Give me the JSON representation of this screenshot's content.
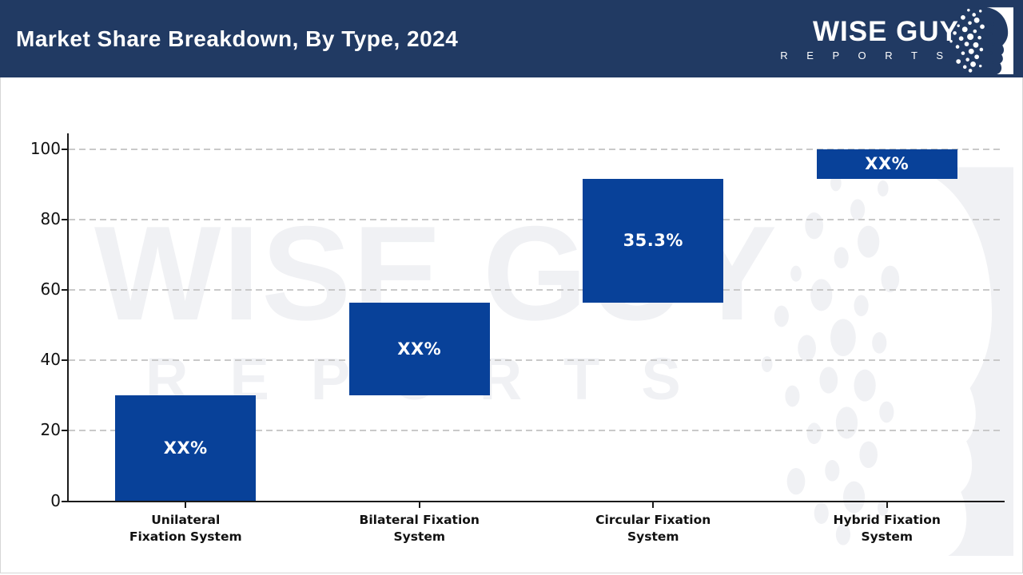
{
  "header": {
    "title": "Market Share Breakdown, By Type, 2024",
    "logo": {
      "wordmark": "WISE GUY",
      "subtext": "R E P O R T S"
    }
  },
  "watermark": {
    "line1": "WISE GUY",
    "line2": "REPORTS"
  },
  "colors": {
    "header_bg": "#213a63",
    "bar_blue": "#084199",
    "bar_label": "#ffffff",
    "gridline": "#c9c9c9",
    "axis": "#1a1a1a",
    "watermark": "#f0f1f4",
    "title_text": "#ffffff"
  },
  "chart_data": {
    "type": "bar",
    "subtype": "waterfall",
    "title": "Market Share Breakdown, By Type, 2024",
    "categories": [
      "Unilateral Fixation System",
      "Bilateral Fixation System",
      "Circular Fixation System",
      "Hybrid Fixation System"
    ],
    "category_lines": [
      [
        "Unilateral",
        "Fixation System"
      ],
      [
        "Bilateral Fixation",
        "System"
      ],
      [
        "Circular Fixation",
        "System"
      ],
      [
        "Hybrid Fixation",
        "System"
      ]
    ],
    "bars": [
      {
        "start": 0,
        "end": 30,
        "label": "XX%"
      },
      {
        "start": 30,
        "end": 56.3,
        "label": "XX%"
      },
      {
        "start": 56.3,
        "end": 91.6,
        "label": "35.3%"
      },
      {
        "start": 91.6,
        "end": 100,
        "label": "XX%"
      }
    ],
    "ylim": [
      0,
      100
    ],
    "yticks": [
      0,
      20,
      40,
      60,
      80,
      100
    ],
    "xlabel": "",
    "ylabel": "",
    "grid": "horizontal-dashed",
    "legend": "none",
    "bar_color": "#084199"
  }
}
